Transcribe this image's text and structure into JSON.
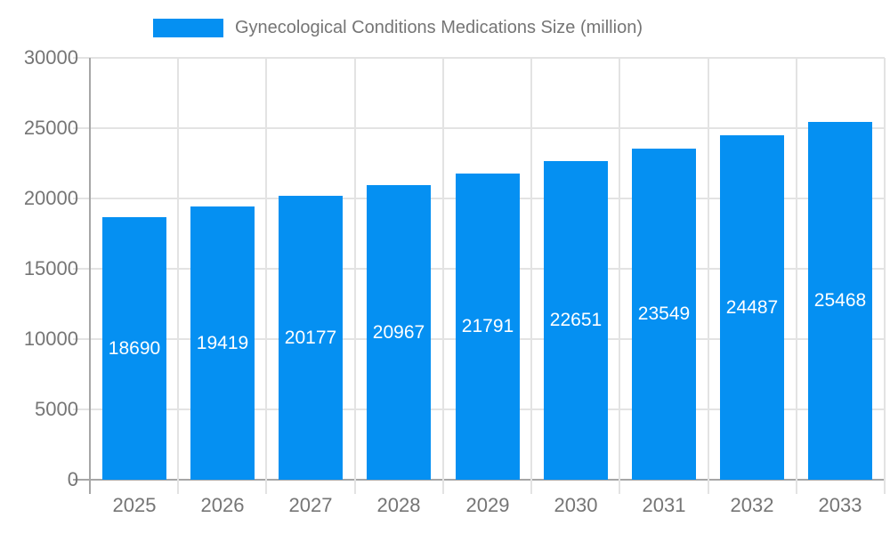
{
  "chart_data": {
    "type": "bar",
    "title": "Gynecological Conditions Medications Size (million)",
    "legend_position": "top",
    "categories": [
      "2025",
      "2026",
      "2027",
      "2028",
      "2029",
      "2030",
      "2031",
      "2032",
      "2033"
    ],
    "values": [
      18690,
      19419,
      20177,
      20967,
      21791,
      22651,
      23549,
      24487,
      25468
    ],
    "series_name": "Gynecological Conditions Medications Size (million)",
    "xlabel": "",
    "ylabel": "",
    "ylim": [
      0,
      30000
    ],
    "ytick_step": 5000,
    "yticks": [
      0,
      5000,
      10000,
      15000,
      20000,
      25000,
      30000
    ],
    "grid": true,
    "bar_value_labels_visible": true,
    "colors": {
      "bar": "#0590f2",
      "bar_label": "#ffffff",
      "axis_line": "#a6a6a6",
      "gridline": "#e3e3e3",
      "tick_label": "#757575",
      "title": "#757575",
      "background": "#ffffff"
    }
  }
}
